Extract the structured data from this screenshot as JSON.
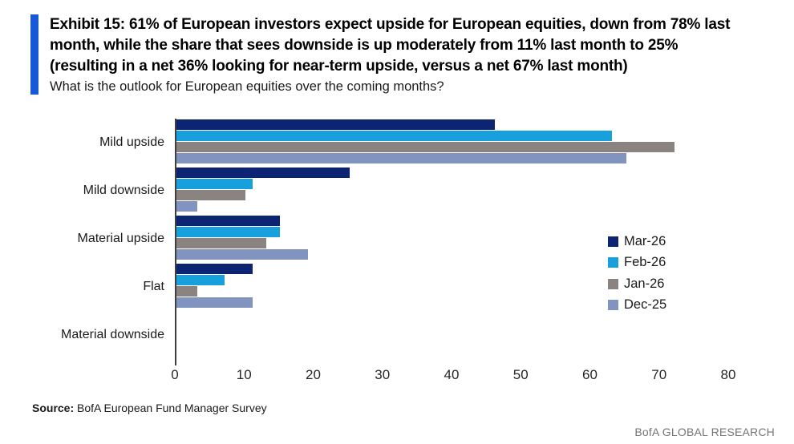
{
  "header": {
    "exhibit_title": "Exhibit 15: 61% of European investors expect upside for European equities, down from 78% last month, while the share that sees downside is up moderately from 11% last month to 25% (resulting in a net 36% looking for near-term upside, versus a net 67% last month)",
    "question": "What is the outlook for European equities over the coming months?",
    "accent_color": "#1758d6"
  },
  "chart_data": {
    "type": "bar",
    "orientation": "horizontal",
    "title": "What is the outlook for European equities over the coming months?",
    "categories": [
      "Mild upside",
      "Mild downside",
      "Material upside",
      "Flat",
      "Material downside"
    ],
    "series": [
      {
        "name": "Mar-26",
        "color": "#0d2472",
        "values": [
          46,
          25,
          15,
          11,
          0
        ]
      },
      {
        "name": "Feb-26",
        "color": "#18a0dc",
        "values": [
          63,
          11,
          15,
          7,
          0
        ]
      },
      {
        "name": "Jan-26",
        "color": "#8b8380",
        "values": [
          72,
          10,
          13,
          3,
          0
        ]
      },
      {
        "name": "Dec-25",
        "color": "#8193bf",
        "values": [
          65,
          3,
          19,
          11,
          0
        ]
      }
    ],
    "xlim": [
      0,
      80
    ],
    "x_ticks": [
      0,
      10,
      20,
      30,
      40,
      50,
      60,
      70,
      80
    ],
    "xlabel": "",
    "ylabel": "",
    "grid": false,
    "legend_position": "right-middle",
    "axis_color": "#3f3f3f"
  },
  "footer": {
    "source_label": "Source:",
    "source_text": "BofA European Fund Manager Survey",
    "brand": "BofA GLOBAL RESEARCH"
  }
}
